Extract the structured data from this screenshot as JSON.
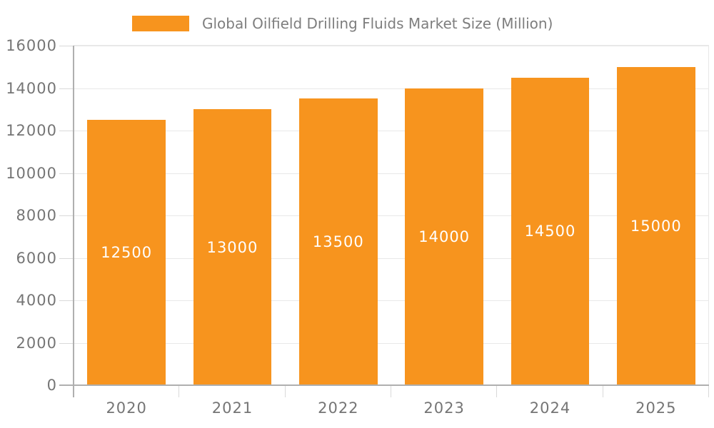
{
  "chart_data": {
    "type": "bar",
    "title": "Global Oilfield Drilling Fluids Market Size (Million)",
    "categories": [
      "2020",
      "2021",
      "2022",
      "2023",
      "2024",
      "2025"
    ],
    "values": [
      12500,
      13000,
      13500,
      14000,
      14500,
      15000
    ],
    "xlabel": "",
    "ylabel": "",
    "ylim": [
      0,
      16000
    ],
    "yticks": [
      0,
      2000,
      4000,
      6000,
      8000,
      10000,
      12000,
      14000,
      16000
    ],
    "grid": true,
    "legend_position": "top",
    "value_label_position": "inside-center",
    "colors": {
      "bar": "#F7941E",
      "value_label": "#FFFFFF",
      "axis_text": "#757575",
      "legend_text": "#7E7E7E",
      "axis_line": "#AFAFAF",
      "tick_line": "#D9D9D9",
      "gridline": "#E8E8E8",
      "background": "#FFFFFF"
    }
  }
}
